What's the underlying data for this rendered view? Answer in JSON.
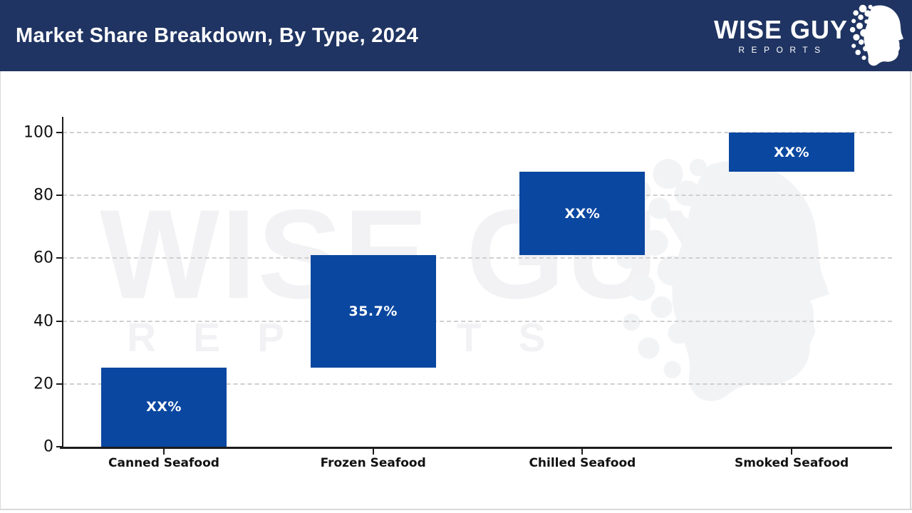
{
  "header": {
    "title": "Market Share Breakdown, By Type, 2024",
    "bg_color": "#1f3462",
    "logo": {
      "line1": "WISE GUY",
      "line2": "REPORTS"
    }
  },
  "watermark": {
    "line1": "WISE GUY",
    "line2": "REPORTS"
  },
  "chart_data": {
    "type": "bar",
    "subtype": "waterfall",
    "title": "Market Share Breakdown, By Type, 2024",
    "categories": [
      "Canned Seafood",
      "Frozen Seafood",
      "Chilled Seafood",
      "Smoked Seafood"
    ],
    "segments": [
      {
        "category": "Canned Seafood",
        "start": 0,
        "end": 25.2,
        "label": "XX%"
      },
      {
        "category": "Frozen Seafood",
        "start": 25.2,
        "end": 60.9,
        "label": "35.7%"
      },
      {
        "category": "Chilled Seafood",
        "start": 60.9,
        "end": 87.5,
        "label": "XX%"
      },
      {
        "category": "Smoked Seafood",
        "start": 87.5,
        "end": 100,
        "label": "XX%"
      }
    ],
    "xlabel": "",
    "ylabel": "",
    "ylim": [
      0,
      105
    ],
    "yticks": [
      0,
      20,
      40,
      60,
      80,
      100
    ],
    "grid": "horizontal-dashed",
    "legend": "none",
    "bar_color": "#0a47a0",
    "bar_label_color": "#ffffff",
    "grid_color": "#cfcfcf",
    "axis_color": "#1c1c1c"
  }
}
